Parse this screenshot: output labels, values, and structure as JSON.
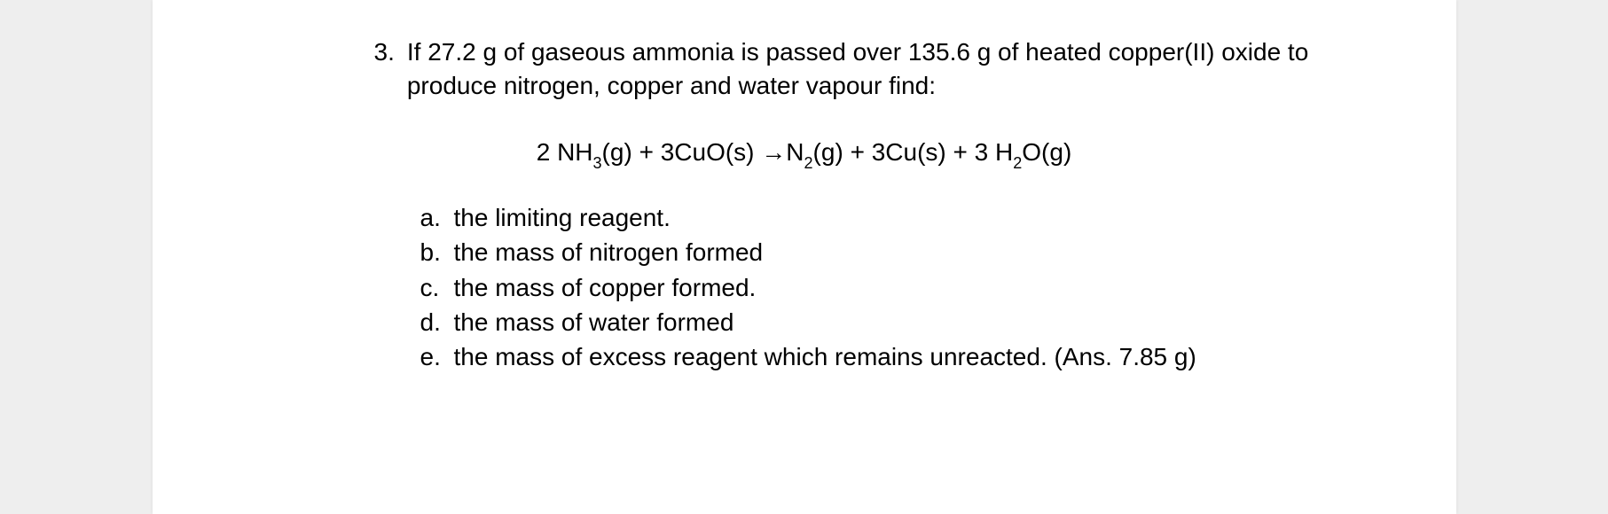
{
  "pageBackgroundColor": "#eeeeee",
  "paperBackgroundColor": "#ffffff",
  "textColor": "#000000",
  "fontFamily": "Comic Sans MS",
  "fontSize": 28,
  "question": {
    "number": "3.",
    "promptLine1": "If 27.2 g of gaseous ammonia is passed over 135.6 g of heated copper(II) oxide to",
    "promptLine2": "produce nitrogen, copper and water vapour find:"
  },
  "equation": {
    "raw": "2 NH3(g) + 3CuO(s) →N2(g) + 3Cu(s) + 3 H2O(g)",
    "coeff_nh3": "2",
    "species_nh": "NH",
    "sub_nh3": "3",
    "state_nh3": "(g)",
    "plus1": "+",
    "coeff_cuo": "3",
    "species_cuo": "CuO",
    "state_cuo": "(s)",
    "arrow": "→",
    "species_n": "N",
    "sub_n2": "2",
    "state_n2": "(g)",
    "plus2": "+",
    "coeff_cu": "3",
    "species_cu": "Cu",
    "state_cu": "(s)",
    "plus3": "+",
    "coeff_h2o": "3",
    "species_h": "H",
    "sub_h2o": "2",
    "species_o": "O",
    "state_h2o": "(g)"
  },
  "parts": {
    "a": {
      "letter": "a.",
      "text": "the limiting reagent."
    },
    "b": {
      "letter": "b.",
      "text": "the mass of nitrogen formed"
    },
    "c": {
      "letter": "c.",
      "text": "the mass of copper formed."
    },
    "d": {
      "letter": "d.",
      "text": "the mass of water formed"
    },
    "e": {
      "letter": "e.",
      "text": "the mass of excess reagent which remains unreacted. (Ans. 7.85 g)"
    }
  }
}
